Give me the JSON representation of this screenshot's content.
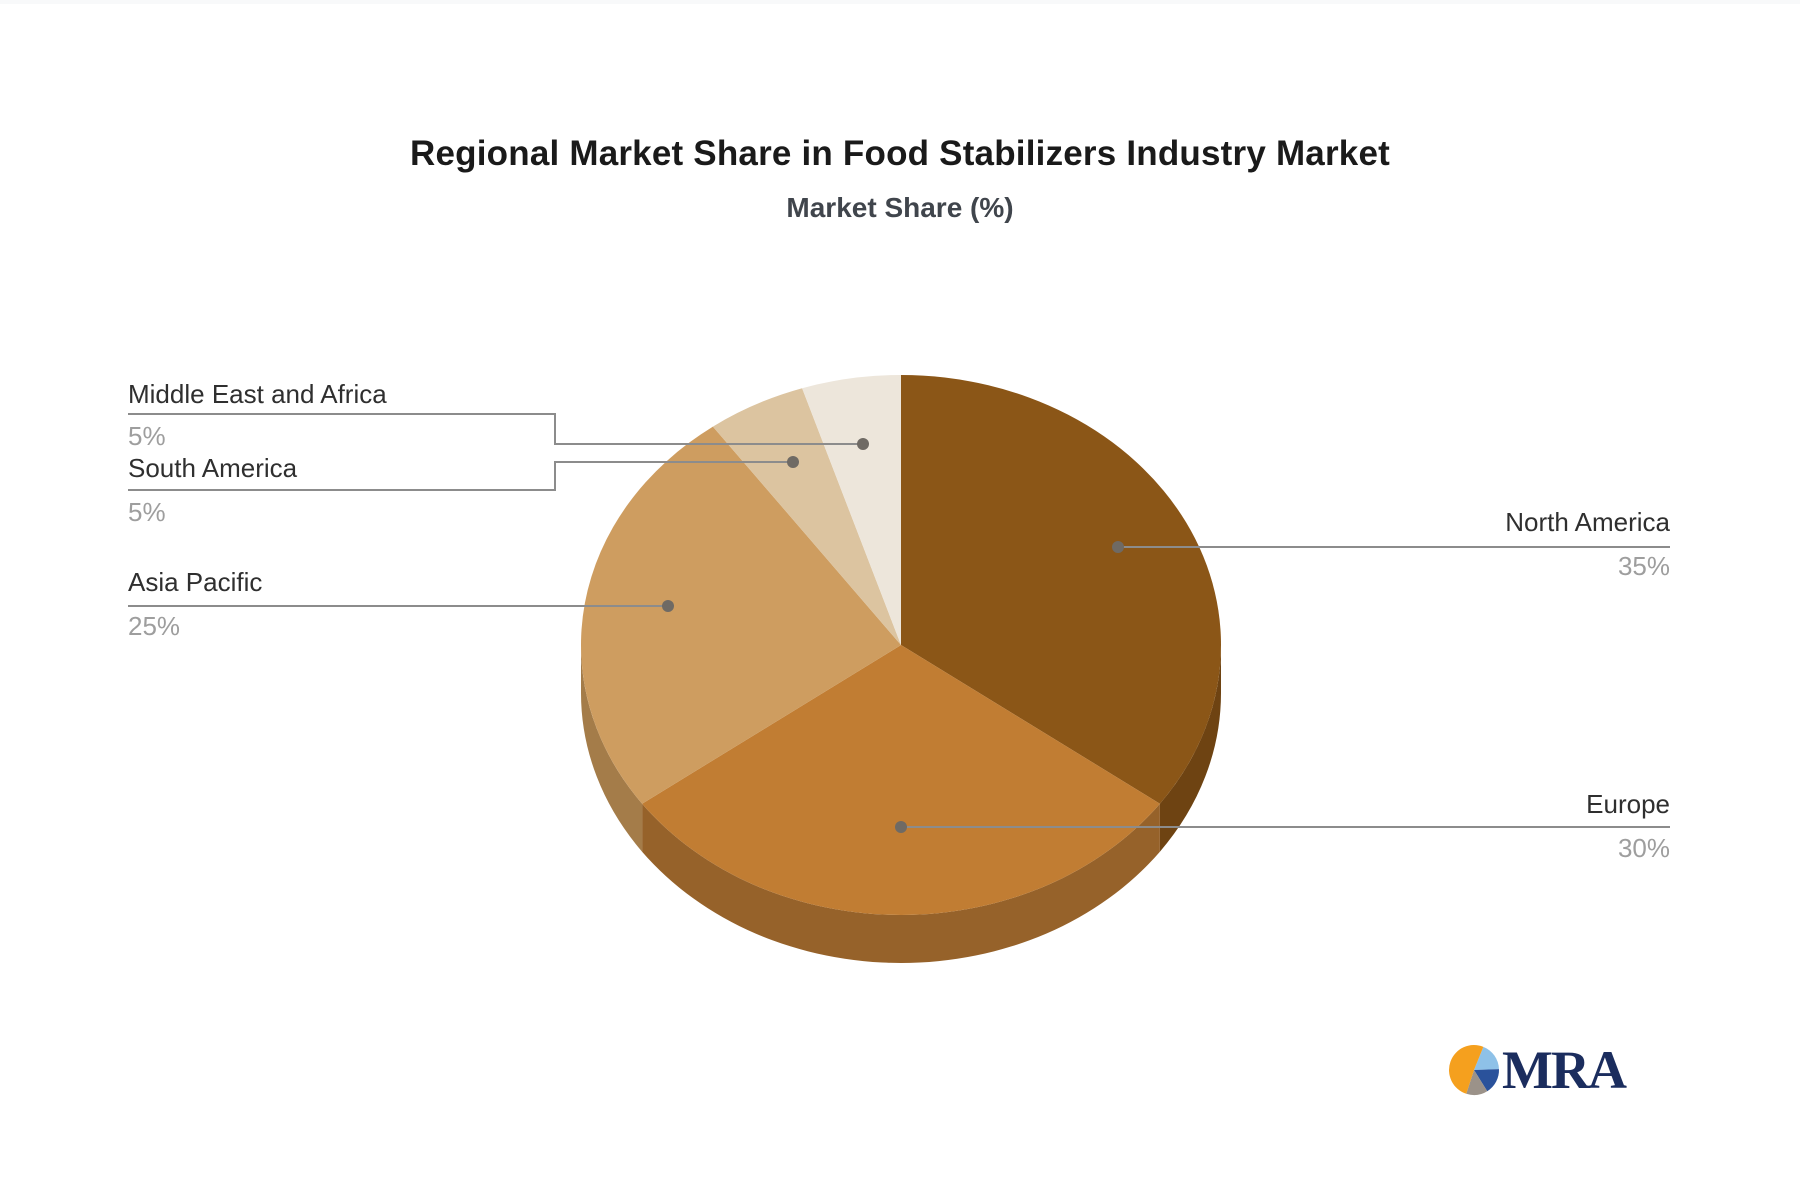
{
  "page": {
    "background": "#FFFFFF",
    "top_strip_color": "#F8F9FA"
  },
  "header": {
    "title": "Regional Market Share in Food Stabilizers Industry Market",
    "subtitle": "Market Share (%)"
  },
  "chart_data": {
    "type": "pie",
    "title": "Regional Market Share in Food Stabilizers Industry Market",
    "subtitle": "Market Share (%)",
    "unit": "%",
    "effect_3d": true,
    "direction": "clockwise",
    "start_angle_deg": 0,
    "legend_position": "none",
    "categories": [
      "North America",
      "Europe",
      "Asia Pacific",
      "South America",
      "Middle East and Africa"
    ],
    "values": [
      35,
      30,
      25,
      5,
      5
    ],
    "slices": [
      {
        "name": "North America",
        "value": 35,
        "pct_label": "35%",
        "color": "#8B5617",
        "side_color": "#6E4312"
      },
      {
        "name": "Europe",
        "value": 30,
        "pct_label": "30%",
        "color": "#C17D33",
        "side_color": "#96622A"
      },
      {
        "name": "Asia Pacific",
        "value": 25,
        "pct_label": "25%",
        "color": "#CE9D60",
        "side_color": "#A47C49"
      },
      {
        "name": "South America",
        "value": 5,
        "pct_label": "5%",
        "color": "#DCC4A0",
        "side_color": null
      },
      {
        "name": "Middle East and Africa",
        "value": 5,
        "pct_label": "5%",
        "color": "#EDE6DB",
        "side_color": null
      }
    ],
    "leader_line_color": "#8C8C8C",
    "dot_color": "#6F6A64",
    "label_color": "#2F2F2F",
    "pct_color": "#9E9E9E"
  },
  "logo": {
    "text": "MRA",
    "text_color": "#1B2D5E",
    "icon_colors": {
      "orange": "#F5A01E",
      "light_blue": "#8EC1E8",
      "dark_blue": "#2A529B",
      "gray": "#9B9289"
    }
  }
}
